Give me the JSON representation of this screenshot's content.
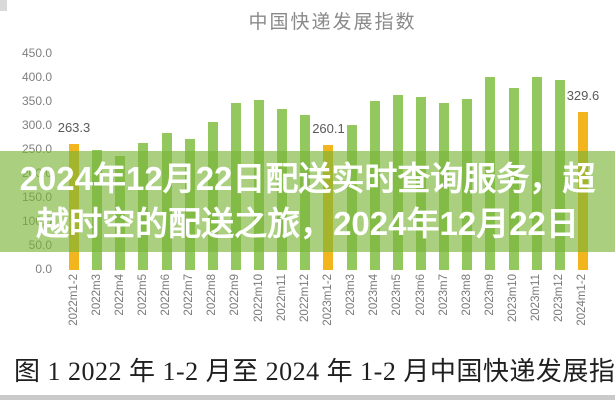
{
  "page": {
    "title": "中国快递发展指数",
    "caption": "图 1  2022 年 1-2 月至 2024 年 1-2 月中国快递发展指数"
  },
  "overlay": {
    "line1": "2024年12月22日配送实时查询服务，超",
    "line2": "越时空的配送之旅，2024年12月22日",
    "band_color": "rgba(120,180,54,0.64)",
    "text_color": "#ffffff"
  },
  "chart_data": {
    "type": "bar",
    "title": "中国快递发展指数",
    "categories": [
      "2022m1-2",
      "2022m3",
      "2022m4",
      "2022m5",
      "2022m6",
      "2022m7",
      "2022m8",
      "2022m9",
      "2022m10",
      "2022m11",
      "2022m12",
      "2023m1-2",
      "2023m3",
      "2023m4",
      "2023m5",
      "2023m6",
      "2023m7",
      "2023m8",
      "2023m9",
      "2023m10",
      "2023m11",
      "2023m12",
      "2024m1-2"
    ],
    "values": [
      263.3,
      249,
      237,
      265,
      285,
      272,
      308,
      347,
      355,
      335,
      323,
      260.1,
      303,
      352,
      365,
      360,
      348,
      356,
      402,
      379,
      402,
      396,
      329.6
    ],
    "highlighted": [
      {
        "index": 0,
        "label": "263.3"
      },
      {
        "index": 11,
        "label": "260.1"
      },
      {
        "index": 22,
        "label": "329.6"
      }
    ],
    "bar_color": "#92C85E",
    "highlight_color": "#F2B51D",
    "ylim": [
      0,
      450
    ],
    "ytick_step": 50,
    "yticks": [
      "450.0",
      "400.0",
      "350.0",
      "300.0",
      "250.0",
      "200.0",
      "150.0",
      "100.0",
      "50.0",
      "0.0"
    ],
    "grid": false,
    "legend": "none",
    "axis_label_color": "#7f7f7f",
    "data_label_color": "#595959",
    "xlabel": "",
    "ylabel": ""
  }
}
